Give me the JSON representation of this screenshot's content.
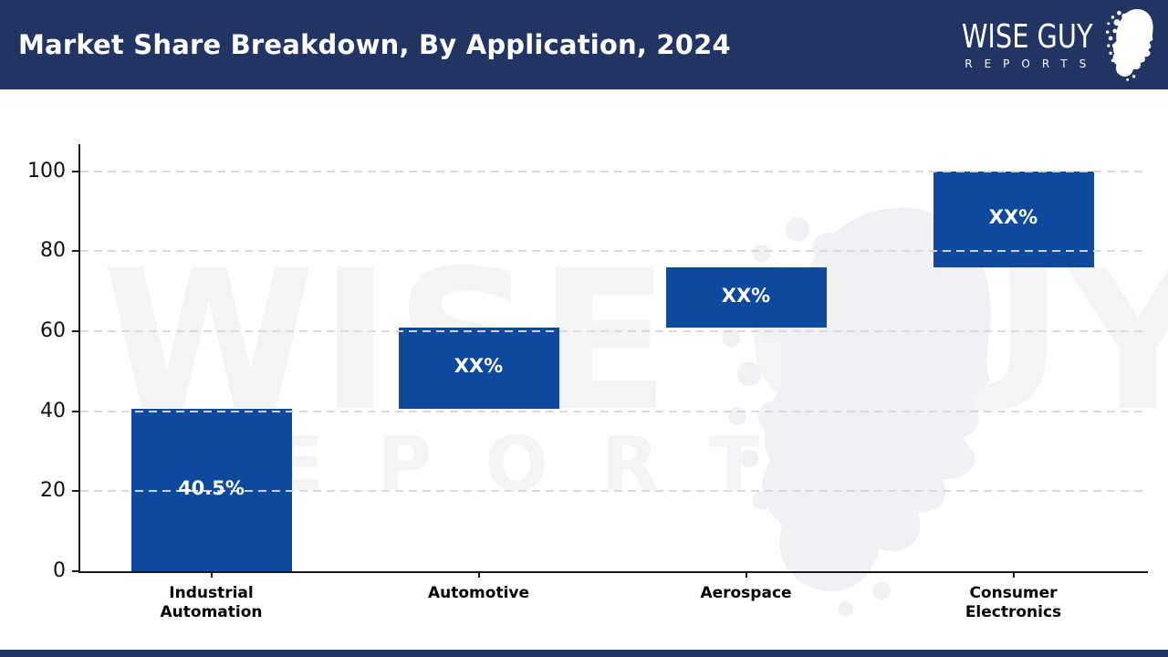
{
  "header": {
    "title": "Market Share Breakdown, By Application, 2024",
    "bg_color": "#213462",
    "logo": {
      "line1": "WISE GUY",
      "line2": "REPORTS"
    }
  },
  "footer": {
    "bg_color": "#213462"
  },
  "watermark": {
    "line1": "WISE GUY",
    "line2": "REPORTS",
    "color": "#f3f4f6",
    "face_color": "#eff1f4"
  },
  "colors": {
    "bar": "#0d4a9e",
    "gridline": "#d9d9d9",
    "axis": "#1a1a1a",
    "tick_label": "#111111",
    "bar_label": "#ffffff"
  },
  "chart_data": {
    "type": "bar",
    "subtype": "waterfall",
    "title": "Market Share Breakdown, By Application, 2024",
    "xlabel": "",
    "ylabel": "",
    "categories": [
      [
        "Industrial",
        "Automation"
      ],
      [
        "Automotive"
      ],
      [
        "Aerospace"
      ],
      [
        "Consumer",
        "Electronics"
      ]
    ],
    "segments": [
      {
        "category": "Industrial Automation",
        "start": 0,
        "end": 40.5,
        "value": 40.5,
        "label": "40.5%"
      },
      {
        "category": "Automotive",
        "start": 40.5,
        "end": 61,
        "value": 20.5,
        "label": "XX%"
      },
      {
        "category": "Aerospace",
        "start": 61,
        "end": 76,
        "value": 15,
        "label": "XX%"
      },
      {
        "category": "Consumer Electronics",
        "start": 76,
        "end": 100,
        "value": 24,
        "label": "XX%"
      }
    ],
    "yticks": [
      0,
      20,
      40,
      60,
      80,
      100
    ],
    "ylim": [
      0,
      106
    ],
    "grid": "horizontal-dashed",
    "legend": "none"
  }
}
